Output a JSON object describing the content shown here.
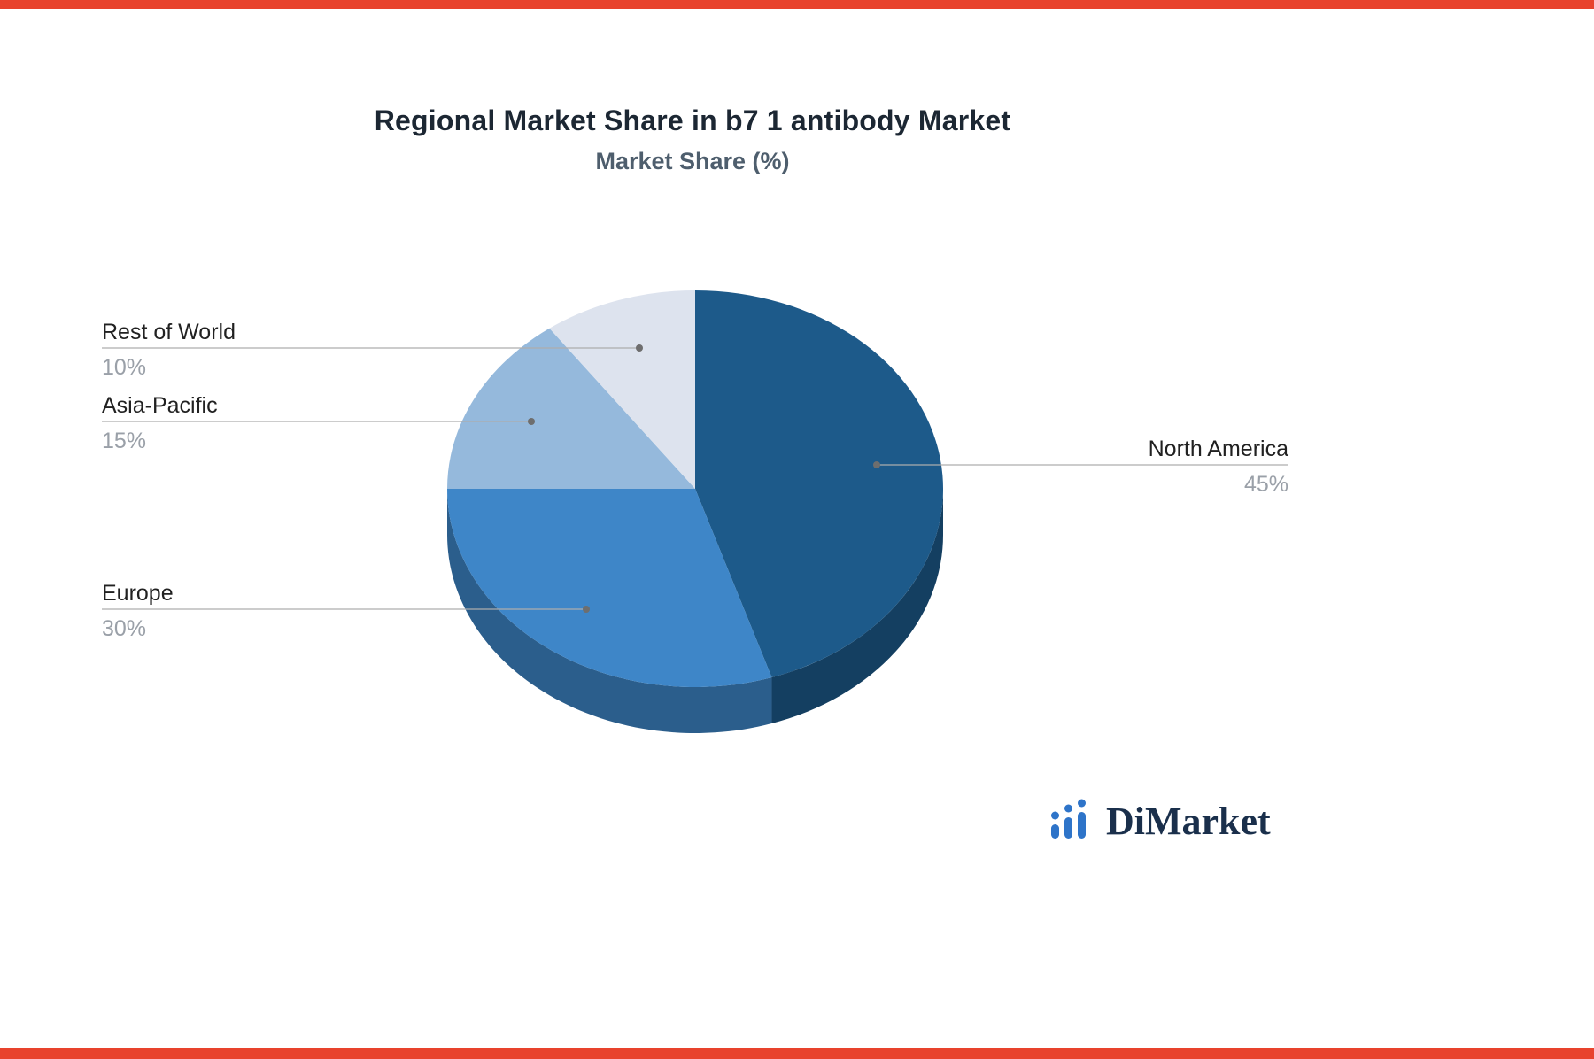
{
  "page": {
    "accent_color": "#e8432d",
    "background": "#ffffff"
  },
  "branding": {
    "logo_text": "DiMarket",
    "logo_icon": "bar-chart-icon",
    "logo_icon_color": "#2e74c9",
    "logo_text_color": "#1a2f4b"
  },
  "chart_data": {
    "type": "pie",
    "title": "Regional Market Share in b7 1 antibody Market",
    "subtitle": "Market Share (%)",
    "style": "3d",
    "direction": "clockwise",
    "start_angle_deg": 0,
    "legend_position": "none",
    "slices": [
      {
        "label": "North America",
        "value": 45,
        "pct": "45%",
        "color": "#1d5a8a"
      },
      {
        "label": "Europe",
        "value": 30,
        "pct": "30%",
        "color": "#3e86c8"
      },
      {
        "label": "Asia-Pacific",
        "value": 15,
        "pct": "15%",
        "color": "#95b9dc"
      },
      {
        "label": "Rest of World",
        "value": 10,
        "pct": "10%",
        "color": "#dde3ee"
      }
    ]
  }
}
